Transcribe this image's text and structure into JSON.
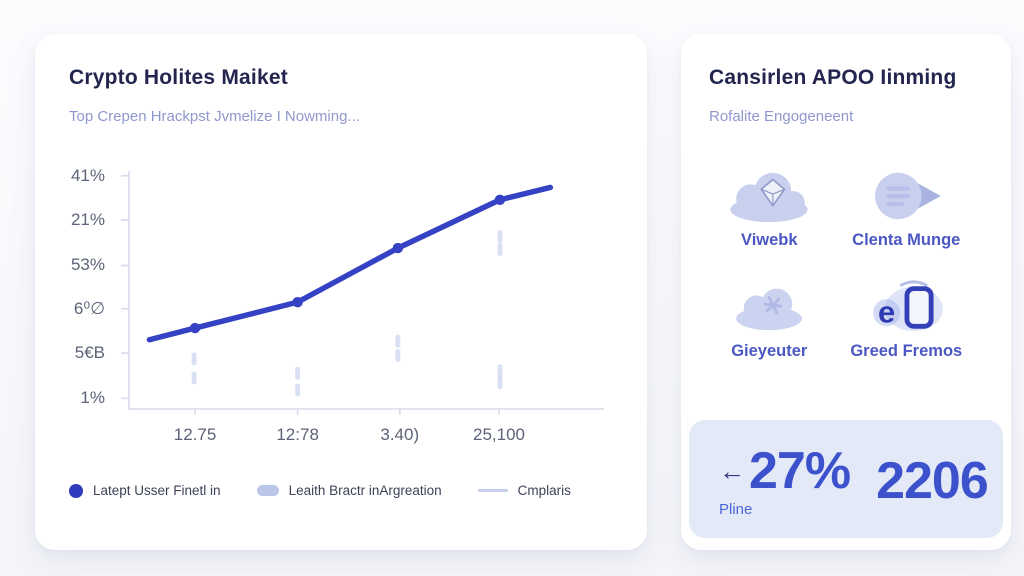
{
  "left_card": {
    "title": "Crypto Holites Maiket",
    "subtitle": "Top Crepen Hrackpst Jvmelize I Nowming...",
    "legend": [
      {
        "label": "Latept Usser Finetl in",
        "color": "#2f3abd"
      },
      {
        "label": "Leaith Bractr inArgreation",
        "color": "#b9c6ea"
      },
      {
        "label": "Cmplaris",
        "color": "#c5cfe9"
      }
    ]
  },
  "chart_data": {
    "type": "line",
    "title": "Crypto Holites Maiket",
    "xlabel": "",
    "ylabel": "",
    "grid": false,
    "legend_position": "bottom",
    "axis_color": "#d8dceb",
    "y_ticks": [
      {
        "label": "41%",
        "pct": 2
      },
      {
        "label": "21%",
        "pct": 20.6
      },
      {
        "label": "53%",
        "pct": 39.7
      },
      {
        "label": "6⁰∅",
        "pct": 57.9
      },
      {
        "label": "5€B",
        "pct": 76.5
      },
      {
        "label": "1%",
        "pct": 95.5
      }
    ],
    "x_ticks": [
      {
        "label": "12.75",
        "pct": 13.9
      },
      {
        "label": "12:78",
        "pct": 35.5
      },
      {
        "label": "3.40)",
        "pct": 57.0
      },
      {
        "label": "25,100",
        "pct": 77.9
      }
    ],
    "series": [
      {
        "name": "Latept Usser Finetl in",
        "color": "#3642c4",
        "points_pct": [
          [
            4.3,
            70.9
          ],
          [
            13.9,
            66.0
          ],
          [
            35.5,
            55.1
          ],
          [
            56.6,
            32.4
          ],
          [
            78.1,
            12.1
          ],
          [
            88.7,
            6.9
          ]
        ],
        "marker_indices": [
          1,
          2,
          3,
          4
        ]
      }
    ],
    "scatter": {
      "name": "Leaith Bractr inArgreation",
      "color": "#bcc7ea",
      "marks_pct": [
        [
          13.7,
          79
        ],
        [
          13.7,
          87
        ],
        [
          35.5,
          85
        ],
        [
          35.5,
          92
        ],
        [
          56.6,
          71.5
        ],
        [
          56.6,
          77.5
        ],
        [
          78.1,
          27.5
        ],
        [
          78.1,
          33
        ],
        [
          78.1,
          84
        ],
        [
          78.1,
          89
        ]
      ]
    }
  },
  "right_card": {
    "title": "Cansirlen APOO Iinming",
    "subtitle": "Rofalite Engogeneent",
    "features": [
      {
        "icon": "cloud-gem-icon",
        "label": "Viwebk"
      },
      {
        "icon": "chat-bubble-icon",
        "label": "Clenta Munge"
      },
      {
        "icon": "cloud-icon",
        "label": "Gieyeuter"
      },
      {
        "icon": "phone-icon",
        "label": "Greed Fremos"
      }
    ],
    "stat": {
      "arrow": "←",
      "percent": "27%",
      "label": "Pline",
      "value": "2206"
    }
  },
  "colors": {
    "accent_blue": "#3642c4",
    "light_lavender": "#c9d0ee",
    "stat_bg": "#e4e9f8",
    "title_text": "#23254f",
    "subtitle_text": "#8f98cd",
    "tick_text": "#5d6378",
    "feature_label": "#4b57c3",
    "stat_text": "#3c52cc"
  }
}
